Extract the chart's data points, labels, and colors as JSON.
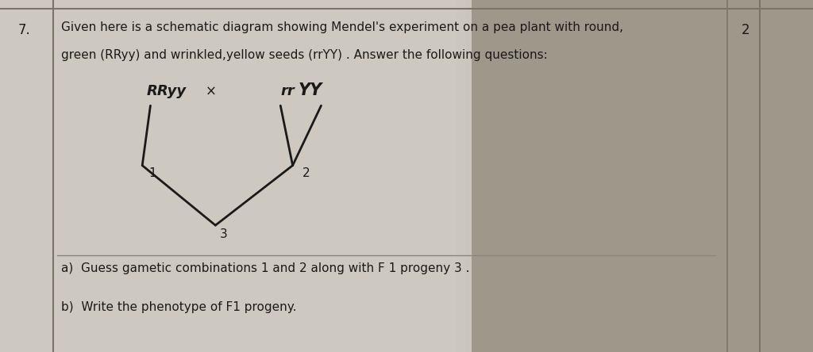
{
  "bg_left": "#d4cfc7",
  "bg_right": "#a8a090",
  "panel_bg": "#ccc8be",
  "line_color": "#1a1a1a",
  "text_color": "#1a1a1a",
  "question_number": "7.",
  "marks": "2",
  "q_line1": "Given here is a schematic diagram showing Mendel's experiment on a pea plant with round,",
  "q_line2": "green (RRyy) and wrinkled,yellow seeds (rrYY) . Answer the following questions:",
  "parent_left": "RRyy",
  "cross": "×",
  "parent_right_1": "rr",
  "parent_right_2": "YY",
  "gamete1": "1",
  "gamete2": "2",
  "progeny": "3",
  "subq_a": "a)  Guess gametic combinations 1 and 2 along with F 1 progeny 3 .",
  "subq_b": "b)  Write the phenotype of F1 progeny.",
  "p_RRyy": [
    0.185,
    0.7
  ],
  "p_rrYY": [
    0.355,
    0.7
  ],
  "g1": [
    0.175,
    0.53
  ],
  "g2": [
    0.36,
    0.53
  ],
  "prog": [
    0.265,
    0.36
  ]
}
